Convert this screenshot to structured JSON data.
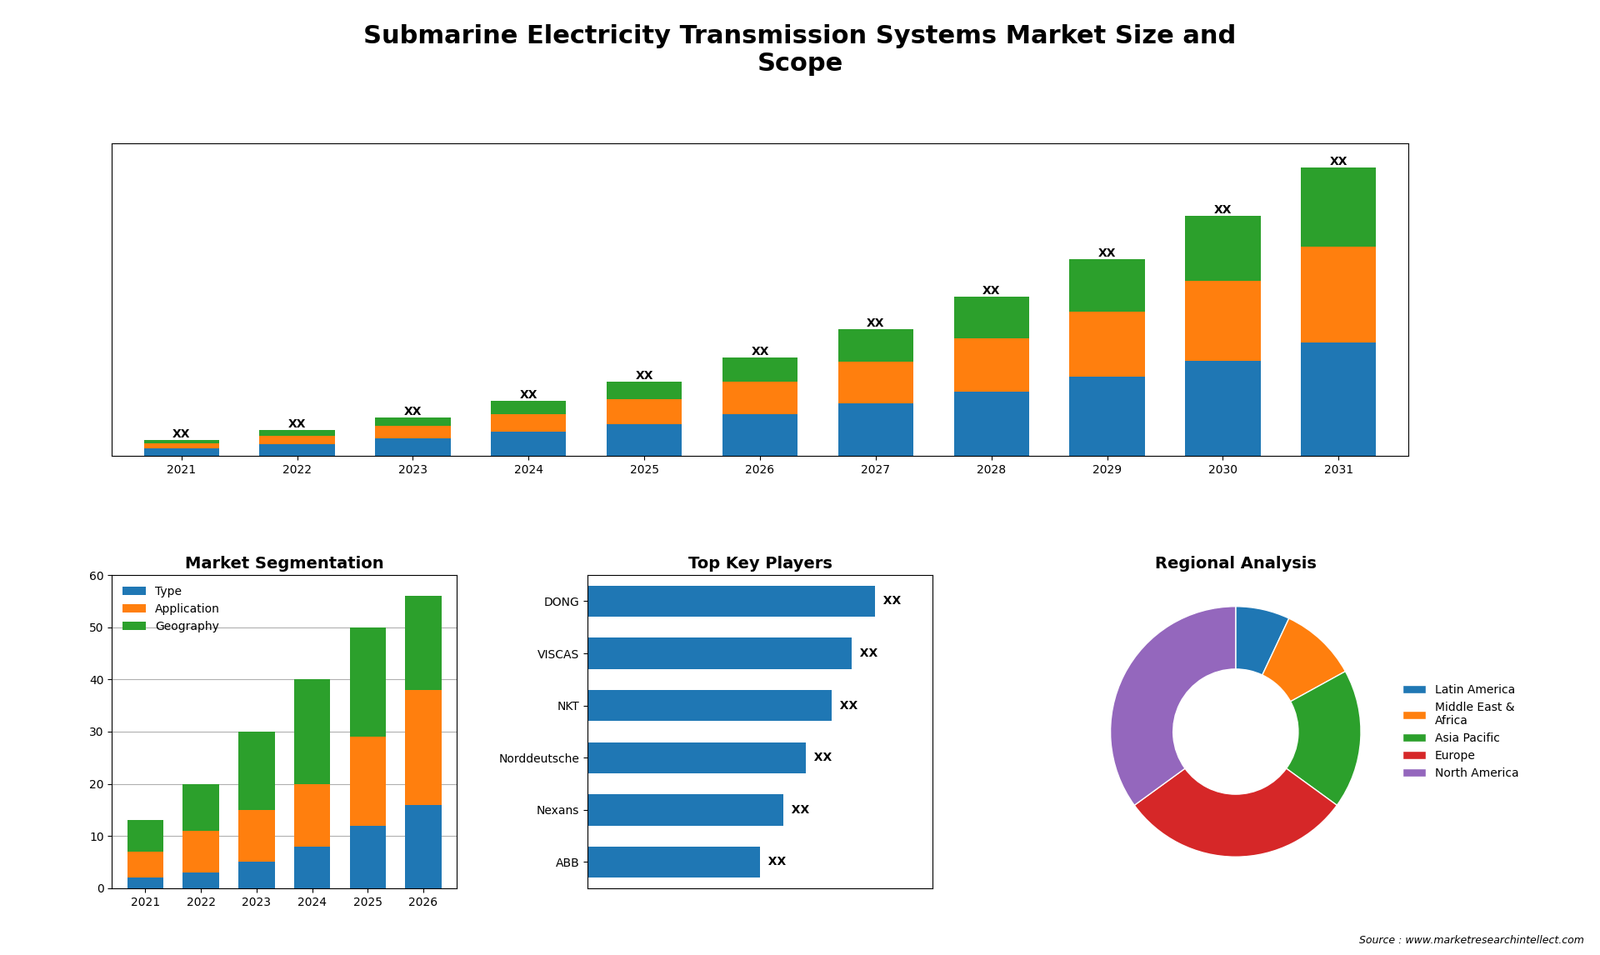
{
  "title": "Submarine Electricity Transmission Systems Market Size and\nScope",
  "annotations": [
    "Source : www.marketresearchintellect.com"
  ],
  "chart_data": [
    {
      "type": "bar",
      "stacked": true,
      "categories": [
        "2021",
        "2022",
        "2023",
        "2024",
        "2025",
        "2026",
        "2027",
        "2028",
        "2029",
        "2030",
        "2031"
      ],
      "series": [
        {
          "values": [
            1.0,
            1.5,
            2.2,
            3.0,
            4.0,
            5.2,
            6.5,
            8.0,
            9.8,
            11.8,
            14.0
          ]
        },
        {
          "values": [
            0.6,
            1.0,
            1.5,
            2.2,
            3.0,
            4.0,
            5.2,
            6.5,
            8.0,
            9.8,
            11.8
          ]
        },
        {
          "values": [
            0.4,
            0.7,
            1.1,
            1.6,
            2.2,
            3.0,
            4.0,
            5.2,
            6.5,
            8.0,
            9.8
          ],
          "value_labels": [
            "XX",
            "XX",
            "XX",
            "XX",
            "XX",
            "XX",
            "XX",
            "XX",
            "XX",
            "XX",
            "XX"
          ]
        }
      ],
      "ylim": [
        0,
        38.6
      ],
      "tick_labels": "x",
      "data_labels": true
    },
    {
      "type": "bar",
      "title": "Market Segmentation",
      "stacked": true,
      "categories": [
        "2021",
        "2022",
        "2023",
        "2024",
        "2025",
        "2026"
      ],
      "series": [
        {
          "name": "Type",
          "values": [
            2,
            3,
            5,
            8,
            12,
            16
          ]
        },
        {
          "name": "Application",
          "values": [
            5,
            8,
            10,
            12,
            17,
            22
          ]
        },
        {
          "name": "Geography",
          "values": [
            6,
            9,
            15,
            20,
            21,
            18
          ]
        }
      ],
      "ylim": [
        0,
        60
      ],
      "yticks": [
        0,
        10,
        20,
        30,
        40,
        50,
        60
      ],
      "grid": true,
      "legend": "upper left"
    },
    {
      "type": "bar",
      "title": "Top Key Players",
      "orientation": "horizontal",
      "categories": [
        "DONG",
        "VISCAS",
        "NKT",
        "Norddeutsche",
        "Nexans",
        "ABB"
      ],
      "values": [
        1.0,
        0.92,
        0.85,
        0.76,
        0.68,
        0.6
      ],
      "value_labels": [
        "XX",
        "XX",
        "XX",
        "XX",
        "XX",
        "XX"
      ],
      "data_labels": true,
      "xlim": [
        0,
        1.2
      ],
      "tick_labels": "y"
    },
    {
      "type": "pie",
      "title": "Regional Analysis",
      "categories": [
        "Latin America",
        "Middle East &\nAfrica",
        "Asia Pacific",
        "Europe",
        "North America"
      ],
      "values": [
        7,
        10,
        18,
        30,
        35
      ],
      "legend": "center left"
    }
  ]
}
